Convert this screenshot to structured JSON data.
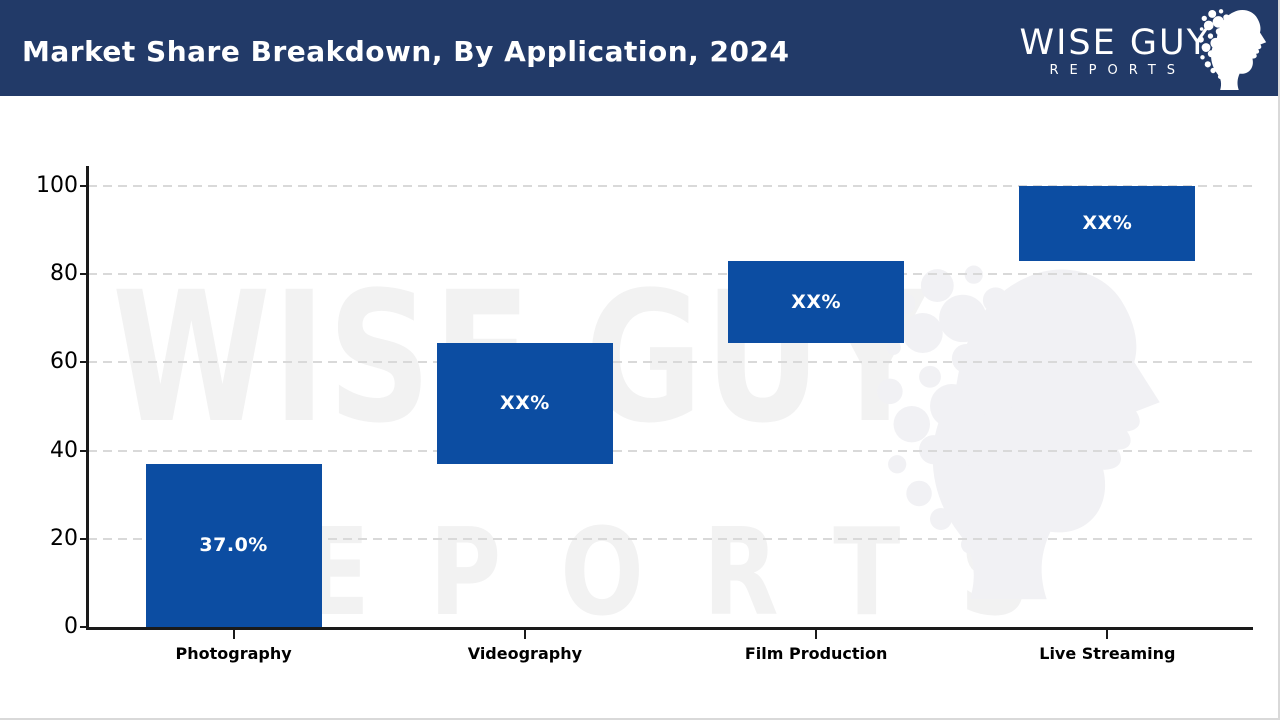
{
  "header": {
    "title": "Market Share Breakdown, By Application, 2024",
    "logo": {
      "line1": "WISE GUY",
      "line2": "REPORTS"
    }
  },
  "watermark": {
    "line1": "WISE GUY",
    "line2": "REPORTS"
  },
  "chart_data": {
    "type": "bar",
    "subtype": "waterfall",
    "title": "Market Share Breakdown, By Application, 2024",
    "categories": [
      "Photography",
      "Videography",
      "Film Production",
      "Live Streaming"
    ],
    "segments": [
      {
        "category": "Photography",
        "start": 0,
        "end": 37,
        "label": "37.0%"
      },
      {
        "category": "Videography",
        "start": 37,
        "end": 64.5,
        "label": "XX%"
      },
      {
        "category": "Film Production",
        "start": 64.5,
        "end": 83,
        "label": "XX%"
      },
      {
        "category": "Live Streaming",
        "start": 83,
        "end": 100,
        "label": "XX%"
      }
    ],
    "xlabel": "",
    "ylabel": "",
    "ylim": [
      0,
      100
    ],
    "yticks": [
      0,
      20,
      40,
      60,
      80,
      100
    ],
    "grid": "horizontal-dashed",
    "legend": "none",
    "bar_color": "#0C4DA2",
    "bar_label_color": "#ffffff",
    "axis_color": "#1a1a1a",
    "gridline_color": "#d9d9d9",
    "header_bg": "#223A68",
    "watermark_color": "#f2f2f2"
  }
}
